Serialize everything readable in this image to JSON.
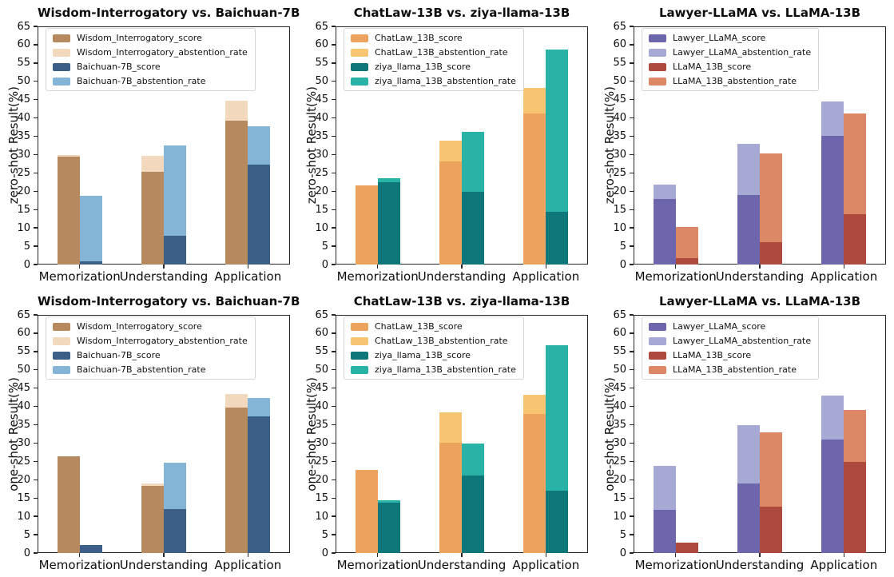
{
  "figure": {
    "background": "#ffffff",
    "rows": 2,
    "cols": 3
  },
  "chart_data": [
    {
      "type": "bar",
      "grid_position": {
        "row": 0,
        "col": 0
      },
      "title": "Wisdom-Interrogatory vs. Baichuan-7B",
      "xlabel": "",
      "ylabel": "zero-shot Result(%)",
      "categories": [
        "Memorization",
        "Understanding",
        "Application"
      ],
      "ylim": [
        0,
        65
      ],
      "yticks": [
        0,
        5,
        10,
        15,
        20,
        25,
        30,
        35,
        40,
        45,
        50,
        55,
        60,
        65
      ],
      "legend_position": "upper left",
      "bar_style": "paired overlay: score bar drawn in front of abstention_rate bar",
      "series": [
        {
          "name": "Wisdom_Interrogatory_score",
          "color": "#b7895e",
          "role": "score",
          "pair": 0,
          "values": [
            29.4,
            25.3,
            39.3
          ]
        },
        {
          "name": "Wisdom_Interrogatory_abstention_rate",
          "color": "#f2d9bd",
          "role": "abstention",
          "pair": 0,
          "values": [
            29.9,
            29.7,
            44.8
          ]
        },
        {
          "name": "Baichuan-7B_score",
          "color": "#3c5f88",
          "role": "score",
          "pair": 1,
          "values": [
            0.9,
            7.9,
            27.3
          ]
        },
        {
          "name": "Baichuan-7B_abstention_rate",
          "color": "#84b5d7",
          "role": "abstention",
          "pair": 1,
          "values": [
            18.8,
            32.5,
            37.8
          ]
        }
      ]
    },
    {
      "type": "bar",
      "grid_position": {
        "row": 0,
        "col": 1
      },
      "title": "ChatLaw-13B vs. ziya-llama-13B",
      "xlabel": "",
      "ylabel": "zero-shot Result(%)",
      "categories": [
        "Memorization",
        "Understanding",
        "Application"
      ],
      "ylim": [
        0,
        65
      ],
      "yticks": [
        0,
        5,
        10,
        15,
        20,
        25,
        30,
        35,
        40,
        45,
        50,
        55,
        60,
        65
      ],
      "legend_position": "upper left",
      "bar_style": "paired overlay: score bar drawn in front of abstention_rate bar",
      "series": [
        {
          "name": "ChatLaw_13B_score",
          "color": "#eca35e",
          "role": "score",
          "pair": 0,
          "values": [
            21.7,
            28.2,
            41.2
          ]
        },
        {
          "name": "ChatLaw_13B_abstention_rate",
          "color": "#f5c571",
          "role": "abstention",
          "pair": 0,
          "values": [
            21.7,
            33.8,
            48.3
          ]
        },
        {
          "name": "ziya_llama_13B_score",
          "color": "#0f7779",
          "role": "score",
          "pair": 1,
          "values": [
            22.5,
            19.9,
            14.4
          ]
        },
        {
          "name": "ziya_llama_13B_abstention_rate",
          "color": "#29b2a6",
          "role": "abstention",
          "pair": 1,
          "values": [
            23.5,
            36.3,
            58.7
          ]
        }
      ]
    },
    {
      "type": "bar",
      "grid_position": {
        "row": 0,
        "col": 2
      },
      "title": "Lawyer-LLaMA vs. LLaMA-13B",
      "xlabel": "",
      "ylabel": "zero-shot Result(%)",
      "categories": [
        "Memorization",
        "Understanding",
        "Application"
      ],
      "ylim": [
        0,
        65
      ],
      "yticks": [
        0,
        5,
        10,
        15,
        20,
        25,
        30,
        35,
        40,
        45,
        50,
        55,
        60,
        65
      ],
      "legend_position": "upper left",
      "bar_style": "paired overlay: score bar drawn in front of abstention_rate bar",
      "series": [
        {
          "name": "Lawyer_LLaMA_score",
          "color": "#6d66ad",
          "role": "score",
          "pair": 0,
          "values": [
            17.8,
            18.9,
            35.1
          ]
        },
        {
          "name": "Lawyer_LLaMA_abstention_rate",
          "color": "#a5a9d3",
          "role": "abstention",
          "pair": 0,
          "values": [
            21.8,
            33.0,
            44.6
          ]
        },
        {
          "name": "LLaMA_13B_score",
          "color": "#ad4a3d",
          "role": "score",
          "pair": 1,
          "values": [
            1.7,
            6.2,
            13.7
          ]
        },
        {
          "name": "LLaMA_13B_abstention_rate",
          "color": "#dc8766",
          "role": "abstention",
          "pair": 1,
          "values": [
            10.2,
            30.3,
            41.2
          ]
        }
      ]
    },
    {
      "type": "bar",
      "grid_position": {
        "row": 1,
        "col": 0
      },
      "title": "Wisdom-Interrogatory vs. Baichuan-7B",
      "xlabel": "",
      "ylabel": "one-shot Result(%)",
      "categories": [
        "Memorization",
        "Understanding",
        "Application"
      ],
      "ylim": [
        0,
        65
      ],
      "yticks": [
        0,
        5,
        10,
        15,
        20,
        25,
        30,
        35,
        40,
        45,
        50,
        55,
        60,
        65
      ],
      "legend_position": "upper left",
      "bar_style": "paired overlay: score bar drawn in front of abstention_rate bar",
      "series": [
        {
          "name": "Wisdom_Interrogatory_score",
          "color": "#b7895e",
          "role": "score",
          "pair": 0,
          "values": [
            26.3,
            18.4,
            39.8
          ]
        },
        {
          "name": "Wisdom_Interrogatory_abstention_rate",
          "color": "#f2d9bd",
          "role": "abstention",
          "pair": 0,
          "values": [
            26.3,
            18.9,
            43.3
          ]
        },
        {
          "name": "Baichuan-7B_score",
          "color": "#3c5f88",
          "role": "score",
          "pair": 1,
          "values": [
            2.1,
            12.0,
            37.2
          ]
        },
        {
          "name": "Baichuan-7B_abstention_rate",
          "color": "#84b5d7",
          "role": "abstention",
          "pair": 1,
          "values": [
            2.1,
            24.7,
            42.3
          ]
        }
      ]
    },
    {
      "type": "bar",
      "grid_position": {
        "row": 1,
        "col": 1
      },
      "title": "ChatLaw-13B vs. ziya-llama-13B",
      "xlabel": "",
      "ylabel": "one-shot Result(%)",
      "categories": [
        "Memorization",
        "Understanding",
        "Application"
      ],
      "ylim": [
        0,
        65
      ],
      "yticks": [
        0,
        5,
        10,
        15,
        20,
        25,
        30,
        35,
        40,
        45,
        50,
        55,
        60,
        65
      ],
      "legend_position": "upper left",
      "bar_style": "paired overlay: score bar drawn in front of abstention_rate bar",
      "series": [
        {
          "name": "ChatLaw_13B_score",
          "color": "#eca35e",
          "role": "score",
          "pair": 0,
          "values": [
            22.7,
            30.1,
            38.0
          ]
        },
        {
          "name": "ChatLaw_13B_abstention_rate",
          "color": "#f5c571",
          "role": "abstention",
          "pair": 0,
          "values": [
            22.7,
            38.4,
            43.2
          ]
        },
        {
          "name": "ziya_llama_13B_score",
          "color": "#0f7779",
          "role": "score",
          "pair": 1,
          "values": [
            13.8,
            21.2,
            17.1
          ]
        },
        {
          "name": "ziya_llama_13B_abstention_rate",
          "color": "#29b2a6",
          "role": "abstention",
          "pair": 1,
          "values": [
            14.5,
            29.8,
            56.8
          ]
        }
      ]
    },
    {
      "type": "bar",
      "grid_position": {
        "row": 1,
        "col": 2
      },
      "title": "Lawyer-LLaMA vs. LLaMA-13B",
      "xlabel": "",
      "ylabel": "one-shot Result(%)",
      "categories": [
        "Memorization",
        "Understanding",
        "Application"
      ],
      "ylim": [
        0,
        65
      ],
      "yticks": [
        0,
        5,
        10,
        15,
        20,
        25,
        30,
        35,
        40,
        45,
        50,
        55,
        60,
        65
      ],
      "legend_position": "upper left",
      "bar_style": "paired overlay: score bar drawn in front of abstention_rate bar",
      "series": [
        {
          "name": "Lawyer_LLaMA_score",
          "color": "#6d66ad",
          "role": "score",
          "pair": 0,
          "values": [
            11.7,
            18.9,
            31.0
          ]
        },
        {
          "name": "Lawyer_LLaMA_abstention_rate",
          "color": "#a5a9d3",
          "role": "abstention",
          "pair": 0,
          "values": [
            23.7,
            35.0,
            42.9
          ]
        },
        {
          "name": "LLaMA_13B_score",
          "color": "#ad4a3d",
          "role": "score",
          "pair": 1,
          "values": [
            2.8,
            12.6,
            24.9
          ]
        },
        {
          "name": "LLaMA_13B_abstention_rate",
          "color": "#dc8766",
          "role": "abstention",
          "pair": 1,
          "values": [
            2.8,
            32.9,
            39.0
          ]
        }
      ]
    }
  ]
}
